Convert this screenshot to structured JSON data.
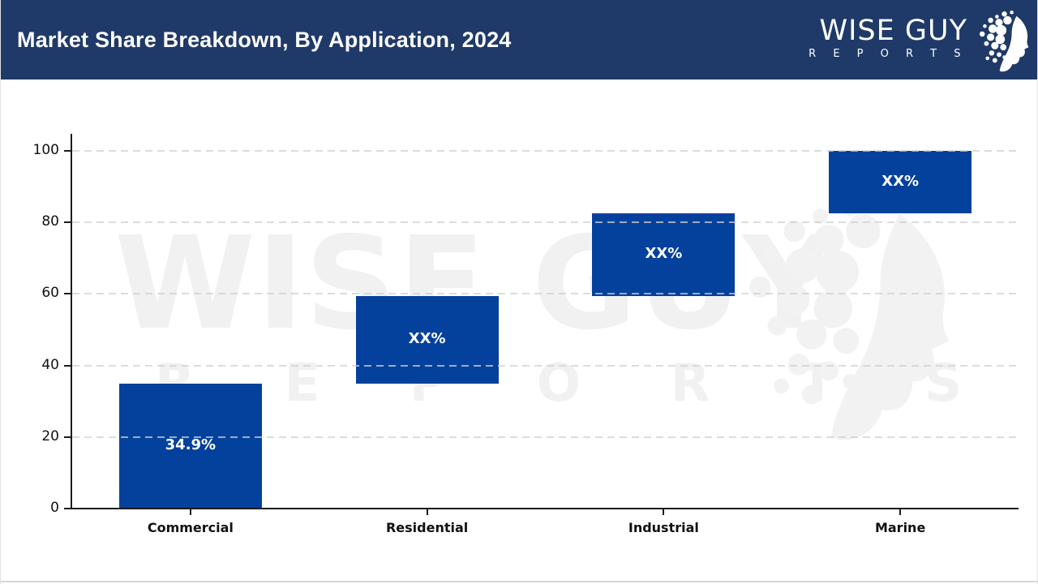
{
  "header": {
    "title": "Market Share Breakdown, By Application, 2024",
    "logo": {
      "line1": "WISE GUY",
      "line2": "R E P O R T S"
    }
  },
  "watermark": {
    "line1": "WISE GUY",
    "line2": "R E P O R T S"
  },
  "colors": {
    "header_bg": "#1f3a68",
    "bar": "#04419c",
    "grid": "#d9d9d9",
    "axis": "#1c1c1c",
    "bar_label": "#ffffff",
    "watermark": "#f1f1f1"
  },
  "chart_data": {
    "type": "bar",
    "subtype": "waterfall-floating-bars",
    "title": "Market Share Breakdown, By Application, 2024",
    "categories": [
      "Commercial",
      "Residential",
      "Industrial",
      "Marine"
    ],
    "segments": [
      {
        "category": "Commercial",
        "start": 0,
        "end": 34.9,
        "label": "34.9%"
      },
      {
        "category": "Residential",
        "start": 34.9,
        "end": 59.4,
        "label": "XX%"
      },
      {
        "category": "Industrial",
        "start": 59.4,
        "end": 82.5,
        "label": "XX%"
      },
      {
        "category": "Marine",
        "start": 82.5,
        "end": 100,
        "label": "XX%"
      }
    ],
    "xlabel": "",
    "ylabel": "",
    "yticks": [
      0,
      20,
      40,
      60,
      80,
      100
    ],
    "ylim": [
      0,
      105
    ],
    "grid": "horizontal-dashed",
    "legend": "none"
  }
}
